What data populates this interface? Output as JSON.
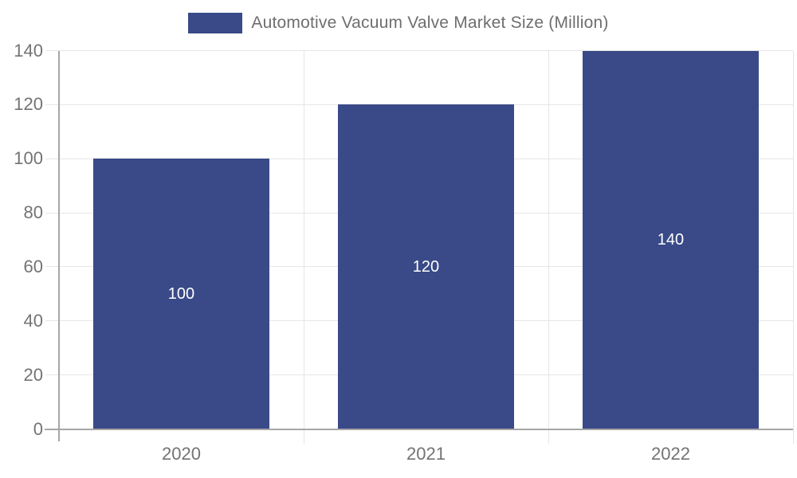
{
  "chart_data": {
    "type": "bar",
    "title": "Automotive Vacuum Valve Market Size (Million)",
    "legend": {
      "label": "Automotive Vacuum Valve Market Size (Million)",
      "position": "top-center"
    },
    "categories": [
      "2020",
      "2021",
      "2022"
    ],
    "values": [
      100,
      120,
      140
    ],
    "value_labels": [
      "100",
      "120",
      "140"
    ],
    "xlabel": "",
    "ylabel": "",
    "ylim": [
      0,
      140
    ],
    "yticks": [
      0,
      20,
      40,
      60,
      80,
      100,
      120,
      140
    ],
    "grid": true,
    "colors": {
      "bar": "#3a4a88",
      "value_label": "#ffffff",
      "gridline": "#e6e6e6",
      "axis": "#a6a6a6",
      "tick_label": "#737373",
      "legend_text": "#6e6e6e",
      "background": "#ffffff"
    }
  }
}
